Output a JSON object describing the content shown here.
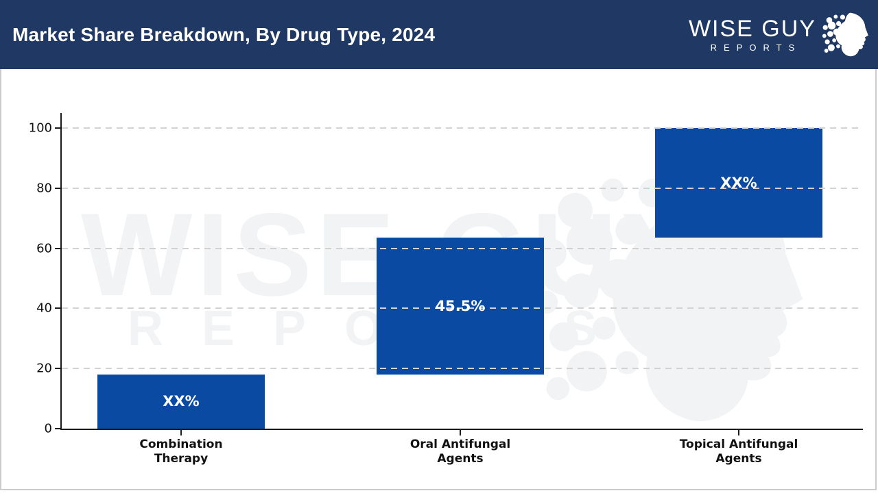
{
  "header": {
    "title": "Market Share Breakdown, By Drug Type, 2024",
    "logo": {
      "line1": "WISE GUY",
      "line2": "REPORTS"
    }
  },
  "watermark": {
    "line1": "WISE GUY",
    "line2": "REPORTS"
  },
  "chart_data": {
    "type": "bar",
    "subtype": "waterfall-floating-bars",
    "title": "Market Share Breakdown, By Drug Type, 2024",
    "categories": [
      {
        "line1": "Combination",
        "line2": "Therapy"
      },
      {
        "line1": "Oral Antifungal",
        "line2": "Agents"
      },
      {
        "line1": "Topical Antifungal",
        "line2": "Agents"
      }
    ],
    "segments": [
      {
        "category": "Combination Therapy",
        "start": 0,
        "end": 18,
        "value_shown": "XX%"
      },
      {
        "category": "Oral Antifungal Agents",
        "start": 18,
        "end": 63.5,
        "value_shown": "45.5%"
      },
      {
        "category": "Topical Antifungal Agents",
        "start": 63.5,
        "end": 100,
        "value_shown": "XX%"
      }
    ],
    "ylabel": "",
    "xlabel": "",
    "yticks": [
      0,
      20,
      40,
      60,
      80,
      100
    ],
    "ylim": [
      0,
      105
    ],
    "grid": "horizontal-dashed",
    "legend": "none"
  },
  "colors": {
    "header_bg": "#1f3864",
    "bar": "#0b4aa2",
    "grid": "#d2d2d2",
    "axis": "#1a1a1a",
    "tick_text": "#111111",
    "bar_label_text": "#ffffff",
    "watermark": "#f2f3f5",
    "card_border": "#cccccc"
  }
}
